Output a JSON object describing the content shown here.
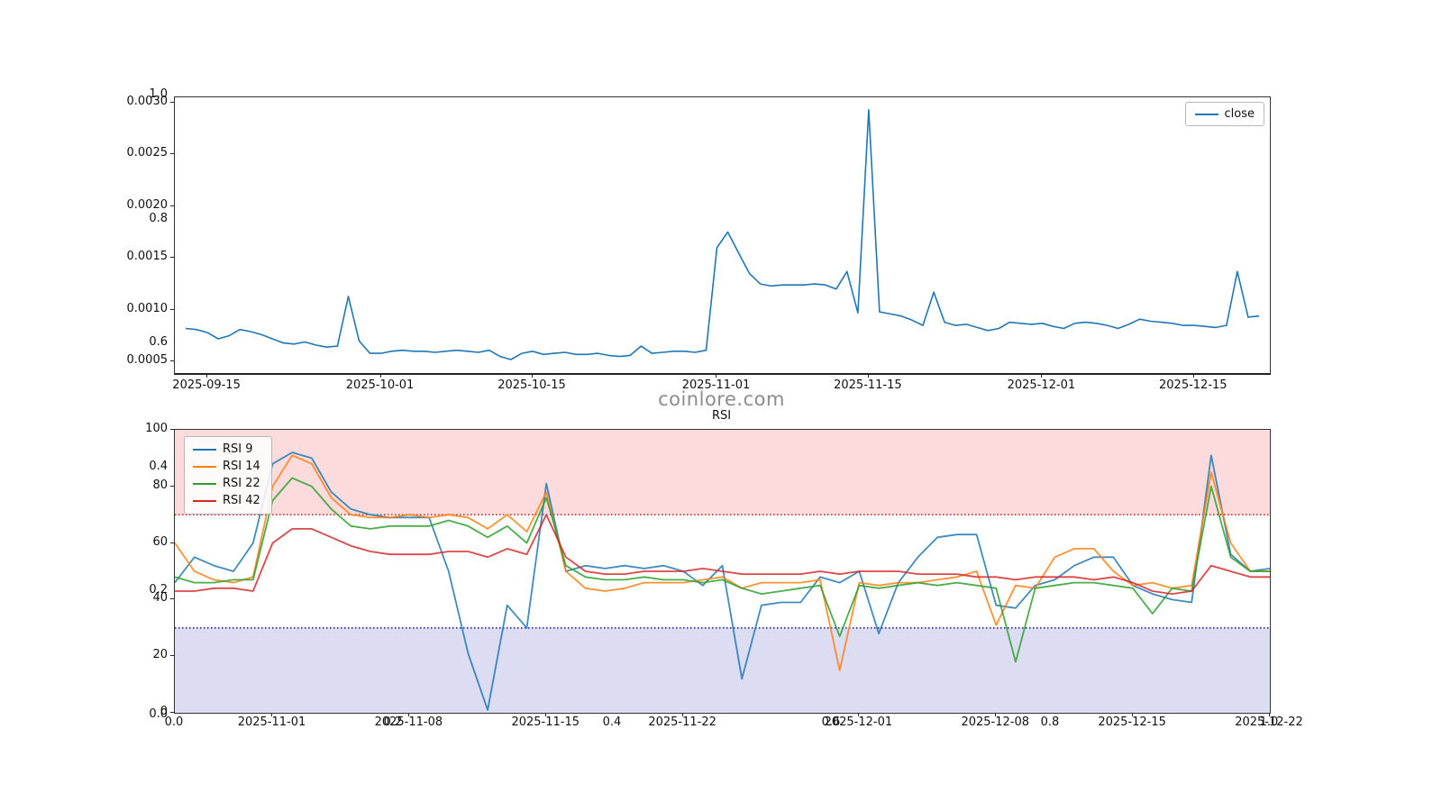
{
  "watermark": "coinlore.com",
  "ghost_axis": {
    "y_labels": [
      "1.0",
      "0.8",
      "0.6",
      "0.4",
      "0.2",
      "0.0"
    ],
    "x_labels": [
      "0.0",
      "0.2",
      "0.4",
      "0.6",
      "0.8",
      "1.0"
    ]
  },
  "chart_data": [
    {
      "type": "line",
      "title": "",
      "legend_loc": "upper right",
      "xlim": [
        "2025-09-12",
        "2025-12-22"
      ],
      "ylim": [
        0.00039,
        0.00305
      ],
      "x_tick_labels": [
        "2025-09-15",
        "2025-10-01",
        "2025-10-15",
        "2025-11-01",
        "2025-11-15",
        "2025-12-01",
        "2025-12-15"
      ],
      "y_tick_labels": [
        "0.0005",
        "0.0010",
        "0.0015",
        "0.0020",
        "0.0025",
        "0.0030"
      ],
      "y_tick_values": [
        0.0005,
        0.001,
        0.0015,
        0.002,
        0.0025,
        0.003
      ],
      "series": [
        {
          "name": "close",
          "color": "#1f77b4",
          "x": [
            "2025-09-13",
            "2025-09-14",
            "2025-09-15",
            "2025-09-16",
            "2025-09-17",
            "2025-09-18",
            "2025-09-19",
            "2025-09-20",
            "2025-09-21",
            "2025-09-22",
            "2025-09-23",
            "2025-09-24",
            "2025-09-25",
            "2025-09-26",
            "2025-09-27",
            "2025-09-28",
            "2025-09-29",
            "2025-09-30",
            "2025-10-01",
            "2025-10-02",
            "2025-10-03",
            "2025-10-04",
            "2025-10-05",
            "2025-10-06",
            "2025-10-07",
            "2025-10-08",
            "2025-10-09",
            "2025-10-10",
            "2025-10-11",
            "2025-10-12",
            "2025-10-13",
            "2025-10-14",
            "2025-10-15",
            "2025-10-16",
            "2025-10-17",
            "2025-10-18",
            "2025-10-19",
            "2025-10-20",
            "2025-10-21",
            "2025-10-22",
            "2025-10-23",
            "2025-10-24",
            "2025-10-25",
            "2025-10-26",
            "2025-10-27",
            "2025-10-28",
            "2025-10-29",
            "2025-10-30",
            "2025-10-31",
            "2025-11-01",
            "2025-11-02",
            "2025-11-03",
            "2025-11-04",
            "2025-11-05",
            "2025-11-06",
            "2025-11-07",
            "2025-11-08",
            "2025-11-09",
            "2025-11-10",
            "2025-11-11",
            "2025-11-12",
            "2025-11-13",
            "2025-11-14",
            "2025-11-15",
            "2025-11-16",
            "2025-11-17",
            "2025-11-18",
            "2025-11-19",
            "2025-11-20",
            "2025-11-21",
            "2025-11-22",
            "2025-11-23",
            "2025-11-24",
            "2025-11-25",
            "2025-11-26",
            "2025-11-27",
            "2025-11-28",
            "2025-11-29",
            "2025-11-30",
            "2025-12-01",
            "2025-12-02",
            "2025-12-03",
            "2025-12-04",
            "2025-12-05",
            "2025-12-06",
            "2025-12-07",
            "2025-12-08",
            "2025-12-09",
            "2025-12-10",
            "2025-12-11",
            "2025-12-12",
            "2025-12-13",
            "2025-12-14",
            "2025-12-15",
            "2025-12-16",
            "2025-12-17",
            "2025-12-18",
            "2025-12-19",
            "2025-12-20",
            "2025-12-21"
          ],
          "y": [
            0.00082,
            0.00081,
            0.00078,
            0.00072,
            0.00075,
            0.00081,
            0.00079,
            0.00076,
            0.00072,
            0.00068,
            0.00067,
            0.00069,
            0.00066,
            0.00064,
            0.00065,
            0.00113,
            0.0007,
            0.00058,
            0.00058,
            0.0006,
            0.00061,
            0.0006,
            0.0006,
            0.00059,
            0.0006,
            0.00061,
            0.0006,
            0.00059,
            0.00061,
            0.00055,
            0.00052,
            0.00058,
            0.0006,
            0.00057,
            0.00058,
            0.00059,
            0.00057,
            0.00057,
            0.00058,
            0.00056,
            0.00055,
            0.00056,
            0.00065,
            0.00058,
            0.00059,
            0.0006,
            0.0006,
            0.00059,
            0.00061,
            0.0016,
            0.00175,
            0.00155,
            0.00135,
            0.00125,
            0.00123,
            0.00124,
            0.00124,
            0.00124,
            0.00125,
            0.00124,
            0.0012,
            0.00137,
            0.00097,
            0.00293,
            0.00098,
            0.00096,
            0.00094,
            0.0009,
            0.00085,
            0.00117,
            0.00088,
            0.00085,
            0.00086,
            0.00083,
            0.0008,
            0.00082,
            0.00088,
            0.00087,
            0.00086,
            0.00087,
            0.00084,
            0.00082,
            0.00087,
            0.00088,
            0.00087,
            0.00085,
            0.00082,
            0.00086,
            0.00091,
            0.00089,
            0.00088,
            0.00087,
            0.00085,
            0.00085,
            0.00084,
            0.00083,
            0.00085,
            0.00137,
            0.00093,
            0.00094
          ]
        }
      ]
    },
    {
      "type": "line",
      "title": "RSI",
      "legend_loc": "upper left",
      "xlim": [
        "2025-10-27",
        "2025-12-22"
      ],
      "ylim": [
        0,
        100
      ],
      "x_tick_labels": [
        "2025-11-01",
        "2025-11-08",
        "2025-11-15",
        "2025-11-22",
        "2025-12-01",
        "2025-12-08",
        "2025-12-15",
        "2025-12-22"
      ],
      "y_tick_labels": [
        "0",
        "20",
        "40",
        "60",
        "80",
        "100"
      ],
      "y_tick_values": [
        0,
        20,
        40,
        60,
        80,
        100
      ],
      "overbought_level": 70,
      "oversold_level": 30,
      "bands": [
        {
          "from": 70,
          "to": 100,
          "color": "#fbdbdb"
        },
        {
          "from": 0,
          "to": 30,
          "color": "#dcdcf3"
        }
      ],
      "hlines": [
        {
          "value": 70,
          "color": "#cc0000",
          "style": "dotted"
        },
        {
          "value": 30,
          "color": "#00008b",
          "style": "dotted"
        }
      ],
      "x": [
        "2025-10-27",
        "2025-10-28",
        "2025-10-29",
        "2025-10-30",
        "2025-10-31",
        "2025-11-01",
        "2025-11-02",
        "2025-11-03",
        "2025-11-04",
        "2025-11-05",
        "2025-11-06",
        "2025-11-07",
        "2025-11-08",
        "2025-11-09",
        "2025-11-10",
        "2025-11-11",
        "2025-11-12",
        "2025-11-13",
        "2025-11-14",
        "2025-11-15",
        "2025-11-16",
        "2025-11-17",
        "2025-11-18",
        "2025-11-19",
        "2025-11-20",
        "2025-11-21",
        "2025-11-22",
        "2025-11-23",
        "2025-11-24",
        "2025-11-25",
        "2025-11-26",
        "2025-11-27",
        "2025-11-28",
        "2025-11-29",
        "2025-11-30",
        "2025-12-01",
        "2025-12-02",
        "2025-12-03",
        "2025-12-04",
        "2025-12-05",
        "2025-12-06",
        "2025-12-07",
        "2025-12-08",
        "2025-12-09",
        "2025-12-10",
        "2025-12-11",
        "2025-12-12",
        "2025-12-13",
        "2025-12-14",
        "2025-12-15",
        "2025-12-16",
        "2025-12-17",
        "2025-12-18",
        "2025-12-19",
        "2025-12-20",
        "2025-12-21",
        "2025-12-22"
      ],
      "series": [
        {
          "name": "RSI 9",
          "color": "#1f77b4",
          "values": [
            46,
            55,
            52,
            50,
            60,
            88,
            92,
            90,
            78,
            72,
            70,
            69,
            69,
            69,
            50,
            21,
            1,
            38,
            30,
            81,
            50,
            52,
            51,
            52,
            51,
            52,
            50,
            45,
            52,
            12,
            38,
            39,
            39,
            48,
            46,
            50,
            28,
            46,
            55,
            62,
            63,
            63,
            38,
            37,
            45,
            47,
            52,
            55,
            55,
            45,
            42,
            40,
            39,
            91,
            56,
            50,
            51
          ]
        },
        {
          "name": "RSI 14",
          "color": "#ff7f0e",
          "values": [
            60,
            50,
            47,
            46,
            48,
            80,
            91,
            88,
            76,
            70,
            69,
            69,
            70,
            69,
            70,
            69,
            65,
            70,
            64,
            78,
            50,
            44,
            43,
            44,
            46,
            46,
            46,
            47,
            48,
            44,
            46,
            46,
            46,
            47,
            15,
            46,
            45,
            46,
            46,
            47,
            48,
            50,
            31,
            45,
            44,
            55,
            58,
            58,
            50,
            45,
            46,
            44,
            45,
            85,
            60,
            50,
            50
          ]
        },
        {
          "name": "RSI 22",
          "color": "#2ca02c",
          "values": [
            48,
            46,
            46,
            47,
            47,
            75,
            83,
            80,
            72,
            66,
            65,
            66,
            66,
            66,
            68,
            66,
            62,
            66,
            60,
            76,
            52,
            48,
            47,
            47,
            48,
            47,
            47,
            46,
            47,
            44,
            42,
            43,
            44,
            45,
            27,
            45,
            44,
            45,
            46,
            45,
            46,
            45,
            44,
            18,
            44,
            45,
            46,
            46,
            45,
            44,
            35,
            44,
            43,
            80,
            55,
            50,
            50
          ]
        },
        {
          "name": "RSI 42",
          "color": "#d62728",
          "values": [
            43,
            43,
            44,
            44,
            43,
            60,
            65,
            65,
            62,
            59,
            57,
            56,
            56,
            56,
            57,
            57,
            55,
            58,
            56,
            70,
            55,
            50,
            49,
            49,
            50,
            50,
            50,
            51,
            50,
            49,
            49,
            49,
            49,
            50,
            49,
            50,
            50,
            50,
            49,
            49,
            49,
            48,
            48,
            47,
            48,
            48,
            48,
            47,
            48,
            46,
            43,
            42,
            43,
            52,
            50,
            48,
            48
          ]
        }
      ]
    }
  ]
}
